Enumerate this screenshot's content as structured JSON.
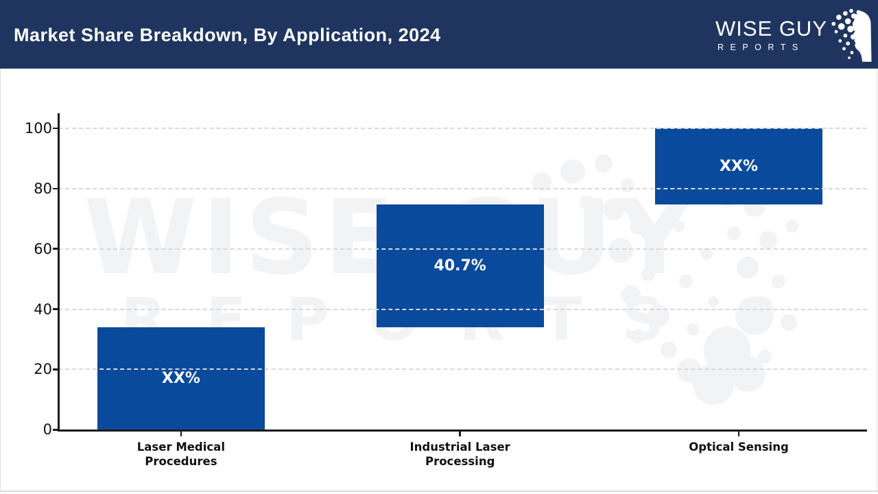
{
  "header": {
    "title": "Market Share Breakdown, By Application, 2024",
    "background_color": "#1f3560",
    "logo": {
      "line1": "WISE GUY",
      "line2": "REPORTS"
    }
  },
  "watermark": {
    "line1": "WISE GUY",
    "line2": "REPORTS"
  },
  "colors": {
    "bar_blue": "#0a4a9d",
    "header_navy": "#1f3560",
    "grid_gray": "#d8d8d8",
    "watermark_gray": "#f2f3f5"
  },
  "chart_data": {
    "type": "bar",
    "subtype": "waterfall-floating-bars",
    "title": "Market Share Breakdown, By Application, 2024",
    "categories": [
      "Laser Medical\nProcedures",
      "Industrial Laser\nProcessing",
      "Optical Sensing"
    ],
    "segments": [
      {
        "category": "Laser Medical Procedures",
        "start": 0,
        "end": 34,
        "label": "XX%"
      },
      {
        "category": "Industrial Laser Processing",
        "start": 34,
        "end": 74.7,
        "label": "40.7%"
      },
      {
        "category": "Optical Sensing",
        "start": 74.7,
        "end": 100,
        "label": "XX%"
      }
    ],
    "yticks": [
      0,
      20,
      40,
      60,
      80,
      100
    ],
    "ylim": [
      0,
      100
    ],
    "xlabel": "",
    "ylabel": "",
    "grid": "horizontal-dashed",
    "legend": "none",
    "bar_color": "#0a4a9d",
    "value_label_color": "#ffffff"
  }
}
